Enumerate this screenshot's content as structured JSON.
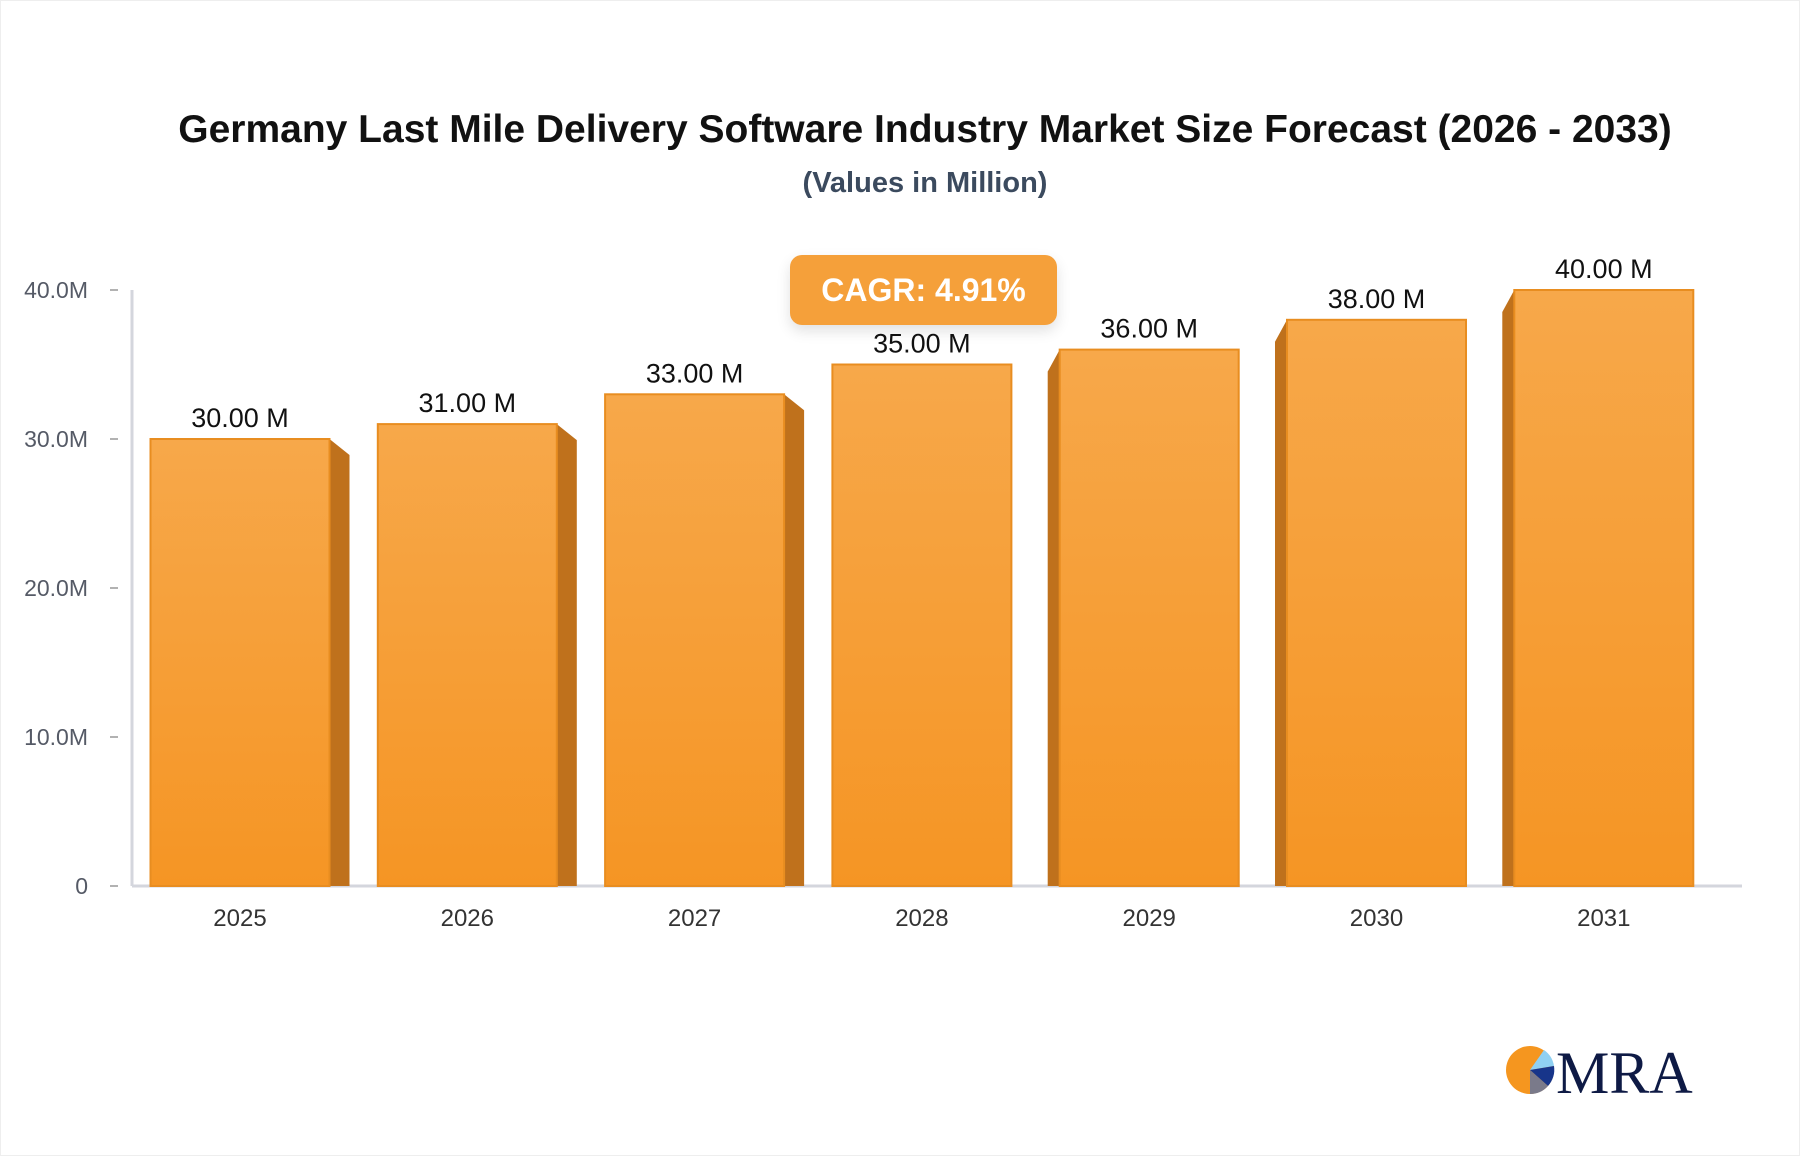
{
  "chart_data": {
    "type": "bar",
    "title": "Germany Last Mile Delivery Software Industry Market Size Forecast (2026 - 2033)",
    "subtitle": "(Values in Million)",
    "categories": [
      "2025",
      "2026",
      "2027",
      "2028",
      "2029",
      "2030",
      "2031"
    ],
    "values": [
      30,
      31,
      33,
      35,
      36,
      38,
      40
    ],
    "data_labels": [
      "30.00 M",
      "31.00 M",
      "33.00 M",
      "35.00 M",
      "36.00 M",
      "38.00 M",
      "40.00 M"
    ],
    "y_ticks": [
      0,
      10,
      20,
      30,
      40
    ],
    "y_tick_labels": [
      "0",
      "10.0M",
      "20.0M",
      "30.0M",
      "40.0M"
    ],
    "ylim": [
      0,
      40
    ],
    "xlabel": "",
    "ylabel": "",
    "grid": false,
    "bar_color": "#f7a84a",
    "bar_side_color": "#bf711c",
    "annotation": "CAGR: 4.91%"
  },
  "logo": {
    "text": "MRA"
  }
}
